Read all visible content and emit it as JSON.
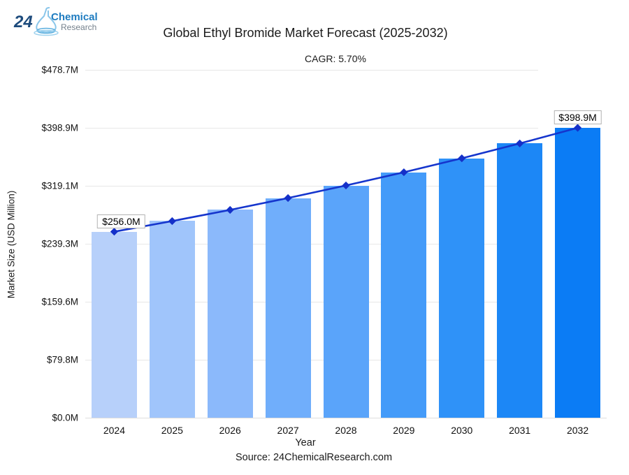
{
  "logo": {
    "number": "24",
    "line1": "Chemical",
    "line2": "Research"
  },
  "header": {
    "title": "Global Ethyl Bromide Market Forecast (2025-2032)",
    "subtitle": "CAGR: 5.70%"
  },
  "footer": {
    "source": "Source: 24ChemicalResearch.com"
  },
  "chart_data": {
    "type": "bar",
    "title": "Global Ethyl Bromide Market Forecast (2025-2032)",
    "subtitle": "CAGR: 5.70%",
    "categories": [
      "2024",
      "2025",
      "2026",
      "2027",
      "2028",
      "2029",
      "2030",
      "2031",
      "2032"
    ],
    "values": [
      256.0,
      270.6,
      286.0,
      302.3,
      319.6,
      337.8,
      357.0,
      377.4,
      398.9
    ],
    "overlay_line": {
      "name": "trend",
      "values": [
        256.0,
        270.6,
        286.0,
        302.3,
        319.6,
        337.8,
        357.0,
        377.4,
        398.9
      ]
    },
    "xlabel": "Year",
    "ylabel": "Market Size (USD Million)",
    "y_ticks": [
      "$478.7M",
      "$398.9M",
      "$319.1M",
      "$239.3M",
      "$159.6M",
      "$79.8M",
      "$0.0M"
    ],
    "ylim": [
      0,
      478.7
    ],
    "grid": "horizontal",
    "legend": "none",
    "annotations": [
      {
        "index": 0,
        "text": "$256.0M",
        "dx": 10
      },
      {
        "index": 8,
        "text": "$398.9M",
        "dx": 0
      }
    ],
    "bar_colors": [
      "#b7d0fa",
      "#a0c5fb",
      "#8bb9fb",
      "#70aefb",
      "#5aa4fa",
      "#449bf9",
      "#2f92f8",
      "#1c87f6",
      "#0b7cf5"
    ],
    "line_color": "#1535cd",
    "marker_color": "#1430c9",
    "grid_color": "#e7e7e7",
    "logo_colors": {
      "number": "#1d4b7c",
      "chemical": "#1e7cc0",
      "research": "#75818c",
      "flask": "#8ac6ea"
    }
  }
}
